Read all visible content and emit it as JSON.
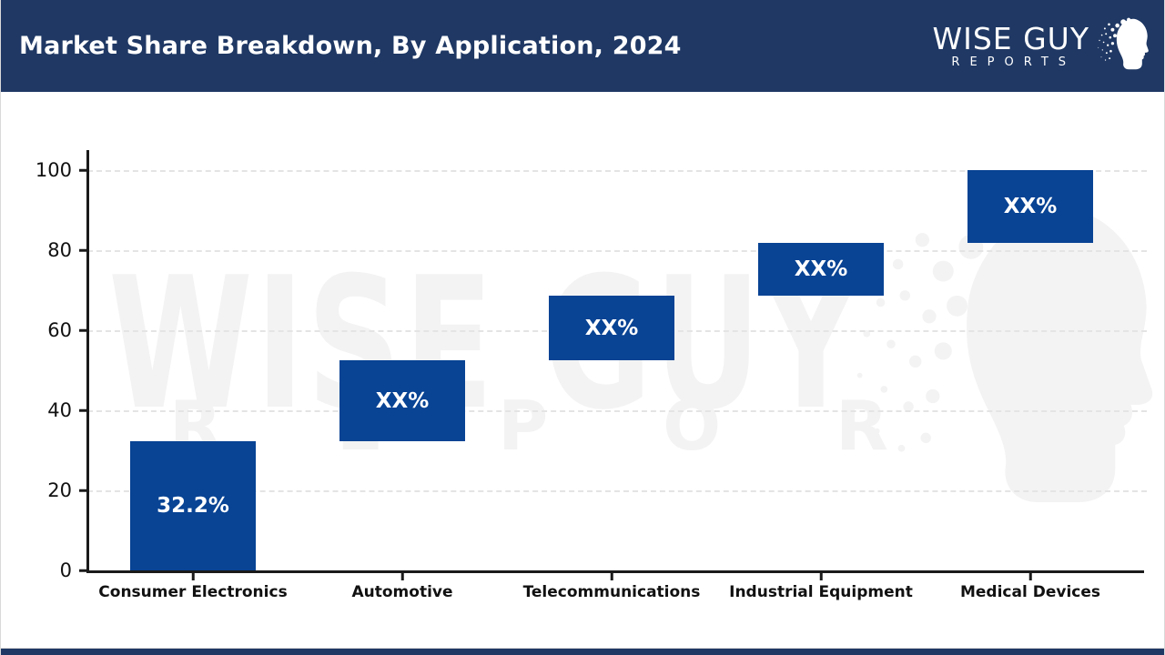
{
  "header": {
    "title": "Market Share Breakdown, By Application, 2024",
    "logo_line1": "WISE GUY",
    "logo_line2": "REPORTS",
    "bg_color": "#1F3864"
  },
  "watermark": {
    "line1": "WISE GUY",
    "line2": "R E P O R T S"
  },
  "chart_data": {
    "type": "bar",
    "subtype": "waterfall",
    "title": "Market Share Breakdown, By Application, 2024",
    "categories": [
      "Consumer Electronics",
      "Automotive",
      "Telecommunications",
      "Industrial Equipment",
      "Medical Devices"
    ],
    "segments": [
      {
        "category": "Consumer Electronics",
        "start": 0,
        "end": 32.2,
        "label": "32.2%"
      },
      {
        "category": "Automotive",
        "start": 32.2,
        "end": 52.5,
        "label": "XX%"
      },
      {
        "category": "Telecommunications",
        "start": 52.5,
        "end": 68.6,
        "label": "XX%"
      },
      {
        "category": "Industrial Equipment",
        "start": 68.6,
        "end": 81.8,
        "label": "XX%"
      },
      {
        "category": "Medical Devices",
        "start": 81.8,
        "end": 100,
        "label": "XX%"
      }
    ],
    "xlabel": "",
    "ylabel": "",
    "ylim": [
      0,
      100
    ],
    "yticks": [
      0,
      20,
      40,
      60,
      80,
      100
    ],
    "grid": "horizontal-dashed",
    "legend": "none",
    "bar_color": "#084394",
    "axis_color": "#1a1a1a",
    "label_color_inside": "#ffffff"
  }
}
